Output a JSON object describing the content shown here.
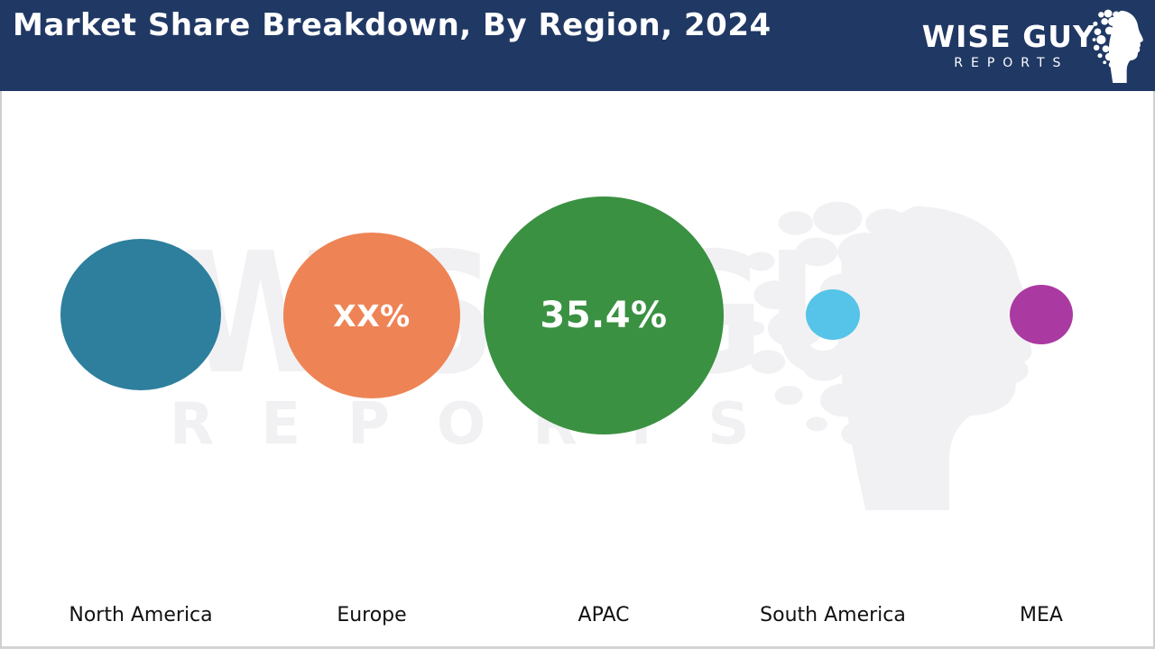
{
  "header": {
    "title": "Market Share Breakdown, By Region, 2024",
    "bg_color": "#203864",
    "logo": {
      "line1": "WISE GUY",
      "line2": "REPORTS",
      "head_icon": "dotted-head-profile"
    }
  },
  "watermark": {
    "line1": "WISE GUY",
    "line2": "REPORTS",
    "head_icon": "dotted-head-profile",
    "color": "#f1f1f3"
  },
  "chart_data": {
    "type": "bubble",
    "title": "Market Share Breakdown, By Region, 2024",
    "categories": [
      "North America",
      "Europe",
      "APAC",
      "South America",
      "MEA"
    ],
    "values": [
      null,
      null,
      35.4,
      null,
      null
    ],
    "value_labels": [
      "",
      "XX%",
      "35.4%",
      "",
      ""
    ],
    "colors": [
      "#2d7f9d",
      "#ee8355",
      "#3a9142",
      "#55c4e8",
      "#ab39a2"
    ],
    "value_text_color": "#ffffff",
    "category_label_color": "#111111",
    "legend_position": "bottom"
  }
}
